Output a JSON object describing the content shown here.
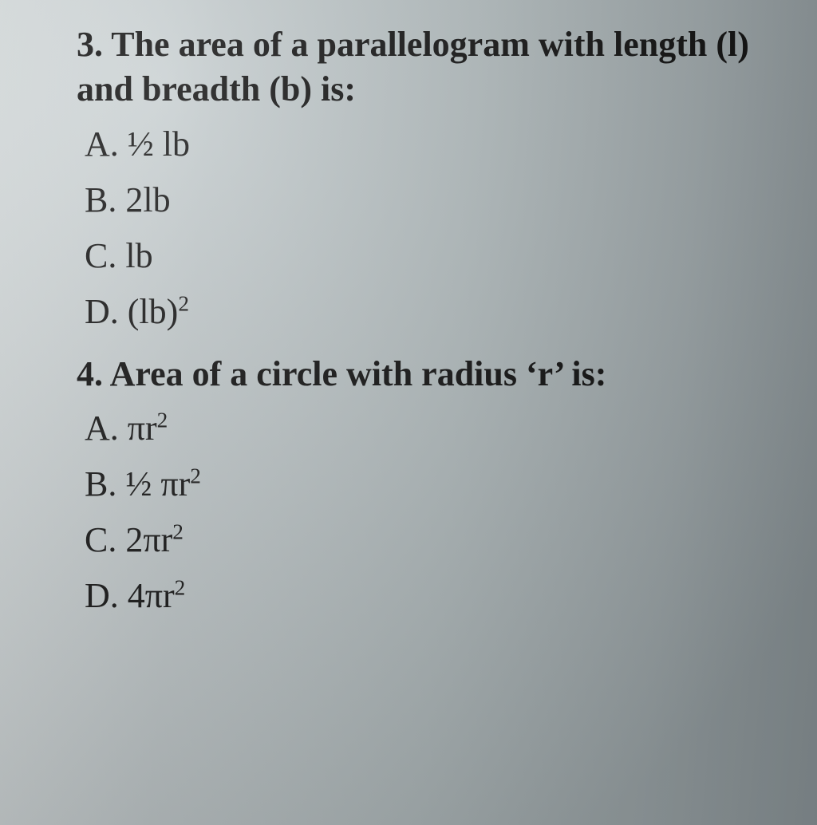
{
  "background_gradient": [
    "#d8dedf",
    "#c1c9cb",
    "#b2bcbe",
    "#a2acaf",
    "#8f999d"
  ],
  "font_family": "Times New Roman",
  "text_color": "#000000",
  "question_fontsize_pt": 33,
  "question_fontweight": "bold",
  "option_fontsize_pt": 33,
  "option_fontweight": "normal",
  "questions": [
    {
      "number": "3.",
      "text": "The area of a parallelogram with length (l) and breadth (b) is:",
      "options": [
        {
          "letter": "A.",
          "label_html": "½ lb"
        },
        {
          "letter": "B.",
          "label_html": "2lb"
        },
        {
          "letter": "C.",
          "label_html": "lb"
        },
        {
          "letter": "D.",
          "label_html": "(lb)<sup>2</sup>"
        }
      ]
    },
    {
      "number": "4.",
      "text": "Area of a circle with radius ‘r’ is:",
      "options": [
        {
          "letter": "A.",
          "label_html": "πr<sup>2</sup>"
        },
        {
          "letter": "B.",
          "label_html": "½ πr<sup>2</sup>"
        },
        {
          "letter": "C.",
          "label_html": "2πr<sup>2</sup>"
        },
        {
          "letter": "D.",
          "label_html": "4πr<sup>2</sup>"
        }
      ]
    }
  ]
}
